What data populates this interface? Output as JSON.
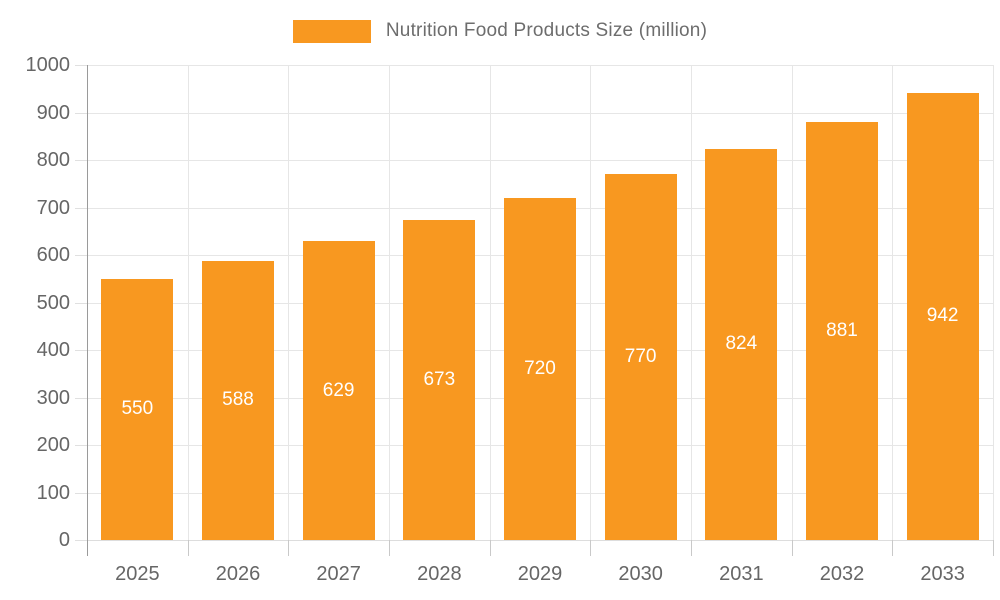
{
  "chart_data": {
    "type": "bar",
    "title": "",
    "legend": {
      "label": "Nutrition Food Products Size (million)",
      "position": "top"
    },
    "categories": [
      "2025",
      "2026",
      "2027",
      "2028",
      "2029",
      "2030",
      "2031",
      "2032",
      "2033"
    ],
    "series": [
      {
        "name": "Nutrition Food Products Size (million)",
        "values": [
          550,
          588,
          629,
          673,
          720,
          770,
          824,
          881,
          942
        ]
      }
    ],
    "xlabel": "",
    "ylabel": "",
    "ylim": [
      0,
      1000
    ],
    "yticks": [
      0,
      100,
      200,
      300,
      400,
      500,
      600,
      700,
      800,
      900,
      1000
    ],
    "grid": "horizontal-and-vertical",
    "data_labels": "inside-center-white",
    "colors": {
      "bar": "#f89820",
      "bar_label": "#ffffff",
      "axis_text": "#666666",
      "legend_text": "#6d6d6d",
      "gridline": "#e6e6e6",
      "y_axis_line": "#9a9a9a",
      "background": "#ffffff"
    }
  }
}
